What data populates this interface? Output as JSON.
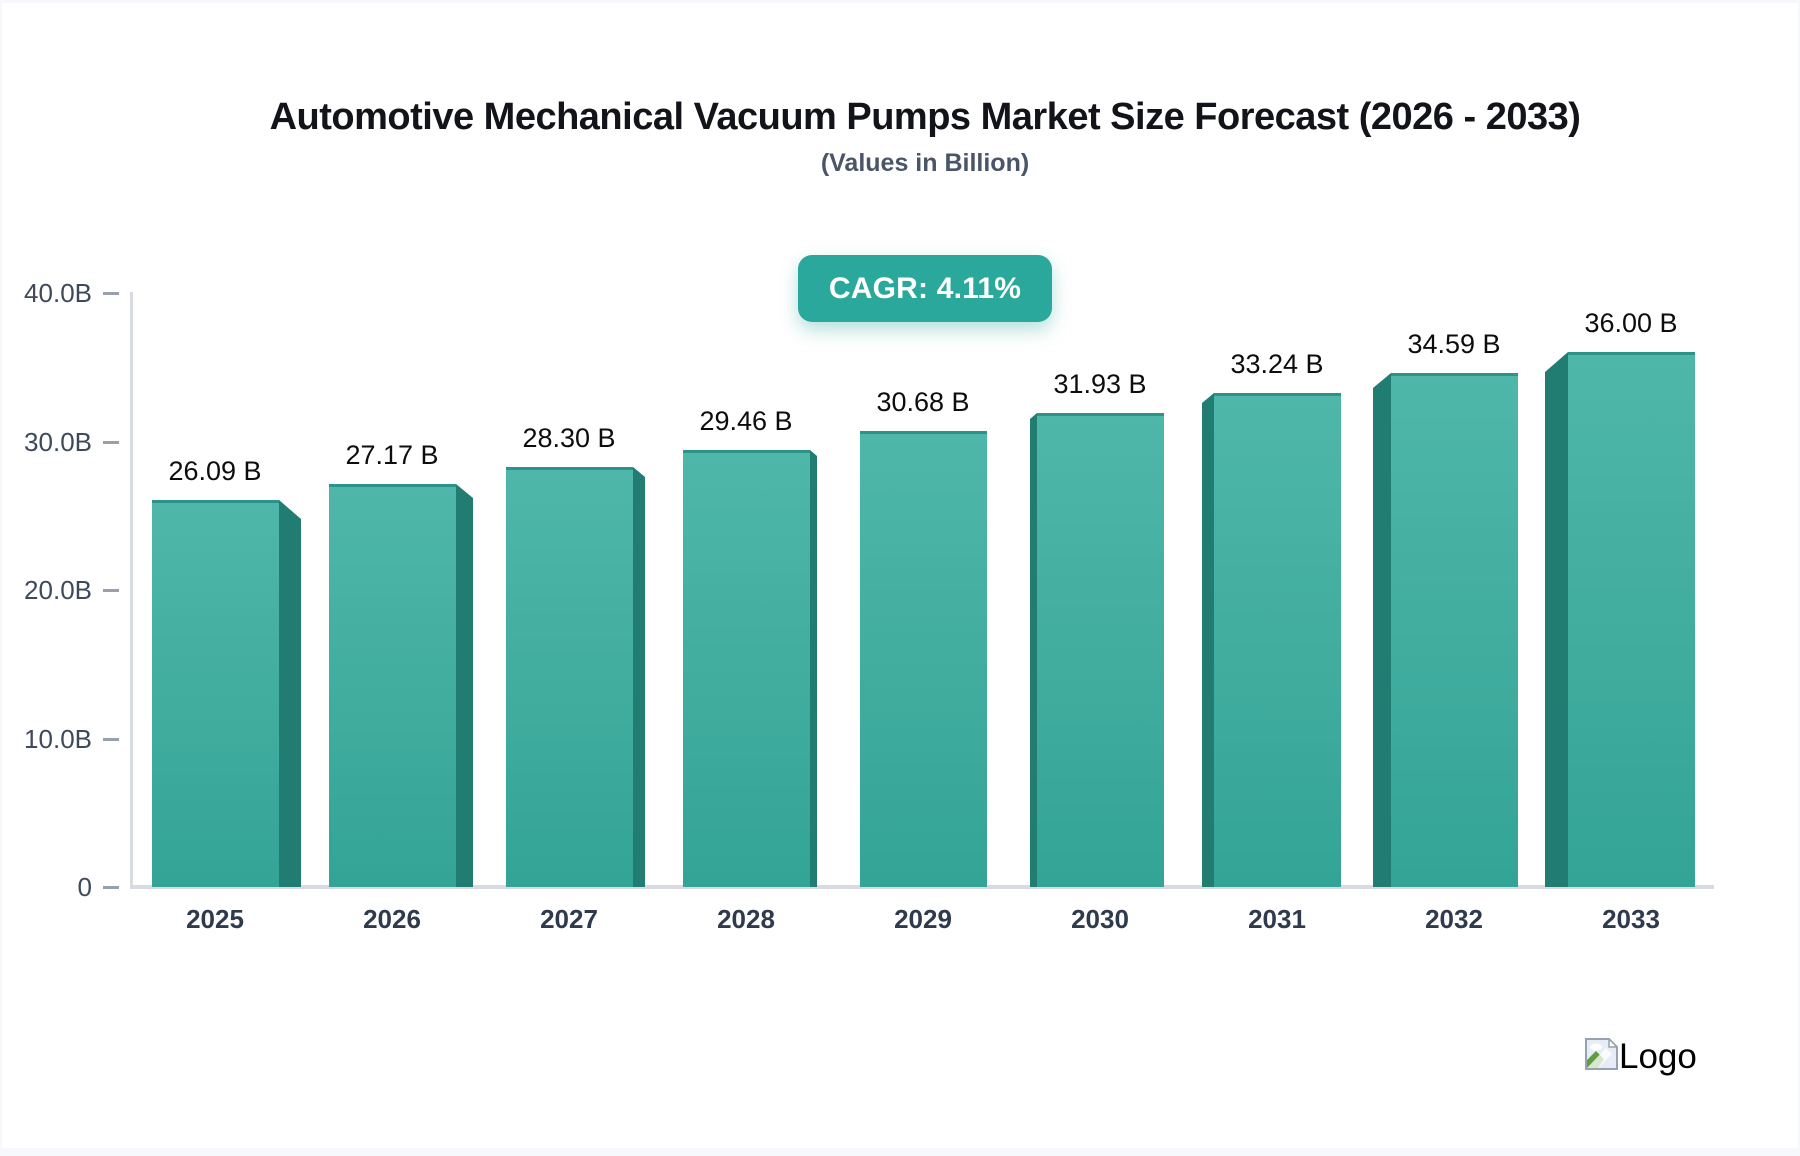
{
  "page": {
    "title": "Automotive Mechanical Vacuum Pumps Market Size Forecast (2026 - 2033)",
    "subtitle": "(Values in Billion)",
    "cagr_badge": "CAGR: 4.11%",
    "logo_text": "Logo",
    "colors": {
      "accent": "#2aa89b",
      "bar_face_top": "#4fb7a9",
      "bar_face_bottom": "#33a496",
      "bar_top_edge": "#2b9387",
      "bar_side": "#217d72",
      "axis_line": "#d8dce2",
      "tick": "#97a0ac",
      "y_label": "#3e4a59",
      "x_label": "#2f3b4d"
    }
  },
  "chart_data": {
    "type": "bar",
    "title": "Automotive Mechanical Vacuum Pumps Market Size Forecast (2026 - 2033)",
    "subtitle": "(Values in Billion)",
    "cagr": "4.11%",
    "categories": [
      "2025",
      "2026",
      "2027",
      "2028",
      "2029",
      "2030",
      "2031",
      "2032",
      "2033"
    ],
    "values": [
      26.09,
      27.17,
      28.3,
      29.46,
      30.68,
      31.93,
      33.24,
      34.59,
      36.0
    ],
    "value_labels": [
      "26.09 B",
      "27.17 B",
      "28.30 B",
      "29.46 B",
      "30.68 B",
      "31.93 B",
      "33.24 B",
      "34.59 B",
      "36.00 B"
    ],
    "xlabel": "",
    "ylabel": "",
    "ylim": [
      0,
      40
    ],
    "y_ticks": [
      {
        "label": "40.0B",
        "value": 40
      },
      {
        "label": "30.0B",
        "value": 30
      },
      {
        "label": "20.0B",
        "value": 20
      },
      {
        "label": "10.0B",
        "value": 10
      },
      {
        "label": "0",
        "value": 0
      }
    ],
    "grid": false,
    "legend": false
  }
}
